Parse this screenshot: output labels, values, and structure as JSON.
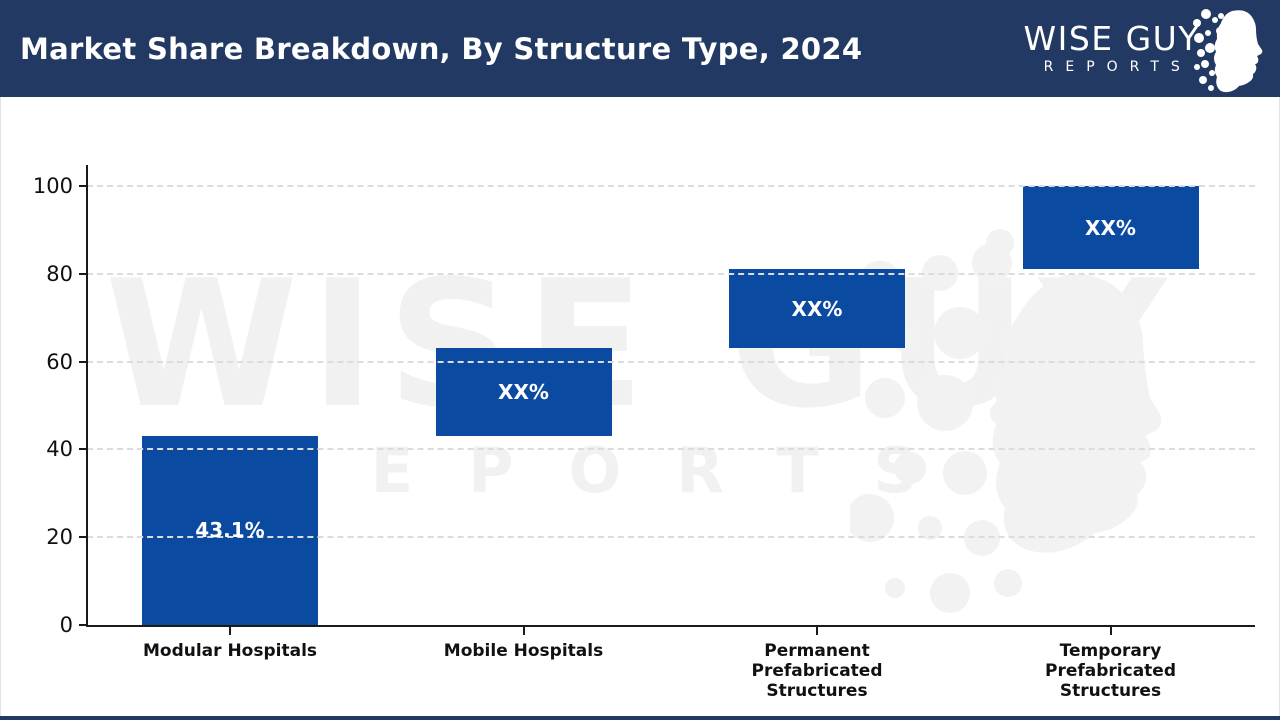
{
  "header": {
    "title": "Market Share Breakdown, By Structure Type, 2024",
    "logo": {
      "line1": "WISE GUY",
      "line2": "REPORTS"
    }
  },
  "watermark": {
    "line1": "WISE GUY",
    "line2": "REPORTS"
  },
  "chart_data": {
    "type": "bar",
    "subtype": "floating-waterfall",
    "title": "Market Share Breakdown, By Structure Type, 2024",
    "categories": [
      "Modular Hospitals",
      "Mobile Hospitals",
      "Permanent\nPrefabricated\nStructures",
      "Temporary\nPrefabricated\nStructures"
    ],
    "segments": [
      {
        "category": "Modular Hospitals",
        "from": 0,
        "to": 43.1,
        "label": "43.1%"
      },
      {
        "category": "Mobile Hospitals",
        "from": 43.1,
        "to": 63.1,
        "label": "XX%"
      },
      {
        "category": "Permanent Prefabricated Structures",
        "from": 63.1,
        "to": 81.0,
        "label": "XX%"
      },
      {
        "category": "Temporary Prefabricated Structures",
        "from": 81.0,
        "to": 100.0,
        "label": "XX%"
      }
    ],
    "ylim": [
      0,
      100
    ],
    "yticks": [
      0,
      20,
      40,
      60,
      80,
      100
    ],
    "grid": true,
    "legend": false,
    "xlabel": "",
    "ylabel": "",
    "bar_color": "#0b4aa1",
    "value_label_color": "#ffffff"
  },
  "colors": {
    "header_bg": "#223a63",
    "bar": "#0b4aa1",
    "gridline": "#dcdcdc",
    "axis": "#1a1a1a",
    "watermark": "#f1f1f1",
    "background": "#ffffff"
  }
}
